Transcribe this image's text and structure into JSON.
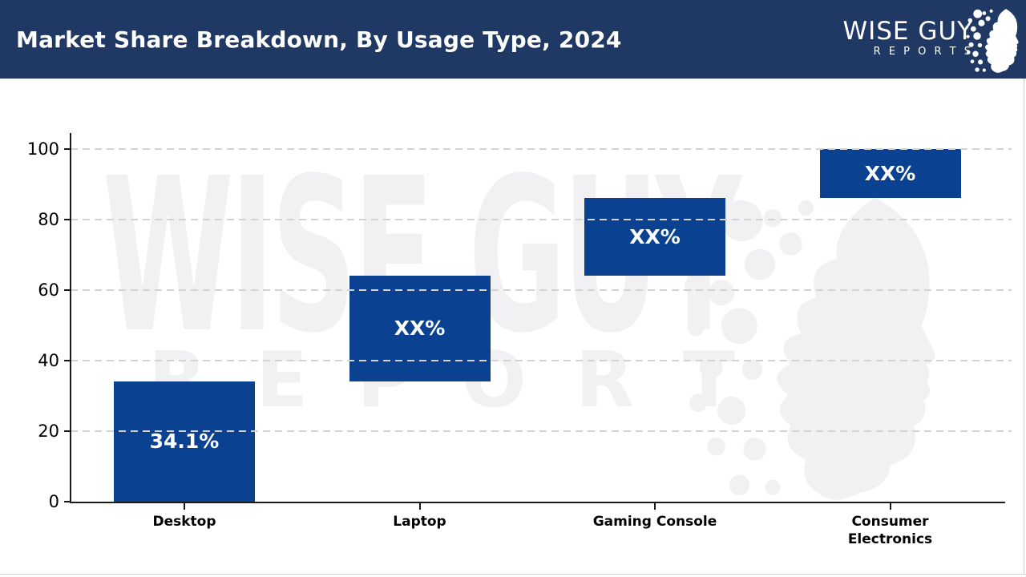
{
  "header": {
    "title": "Market Share Breakdown, By Usage Type, 2024",
    "logo": {
      "line1": "WISE GUY",
      "line2": "R E P O R T S",
      "icon": "dotted-head-profile-icon"
    }
  },
  "watermark": {
    "line1": "WISE GUY",
    "line2": "R E P O R T S",
    "icon": "dotted-head-profile-watermark-icon"
  },
  "chart_data": {
    "type": "bar",
    "subtype": "floating-waterfall",
    "title": "Market Share Breakdown, By Usage Type, 2024",
    "categories": [
      "Desktop",
      "Laptop",
      "Gaming Console",
      "Consumer Electronics"
    ],
    "segments": [
      {
        "category": "Desktop",
        "start": 0,
        "end": 34.1,
        "label": "34.1%"
      },
      {
        "category": "Laptop",
        "start": 34.1,
        "end": 64.2,
        "label": "XX%"
      },
      {
        "category": "Gaming Console",
        "start": 64.2,
        "end": 86.2,
        "label": "XX%"
      },
      {
        "category": "Consumer Electronics",
        "start": 86.2,
        "end": 100,
        "label": "XX%"
      }
    ],
    "y_ticks": [
      0,
      20,
      40,
      60,
      80,
      100
    ],
    "ylim": [
      0,
      104.5
    ],
    "xlabel": "",
    "ylabel": "",
    "grid": "horizontal-dashed",
    "legend": "none"
  },
  "colors": {
    "header_bg": "#1f3864",
    "bar_fill": "#0a4191",
    "bar_label": "#ffffff",
    "grid_line": "#d3d3d3",
    "axis_line": "#1a1a1a",
    "watermark": "#f1f1f4"
  }
}
